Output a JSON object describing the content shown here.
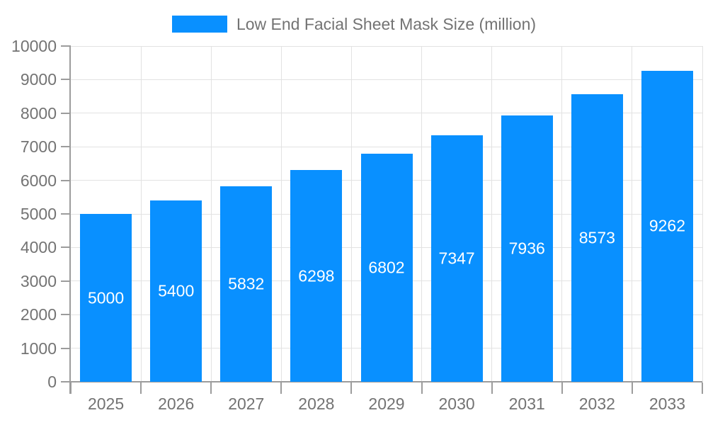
{
  "legend": {
    "label": "Low End Facial Sheet Mask Size (million)",
    "swatch_color": "#0990FF"
  },
  "chart_data": {
    "type": "bar",
    "categories": [
      "2025",
      "2026",
      "2027",
      "2028",
      "2029",
      "2030",
      "2031",
      "2032",
      "2033"
    ],
    "values": [
      5000,
      5400,
      5832,
      6298,
      6802,
      7347,
      7936,
      8573,
      9262
    ],
    "series": [
      {
        "name": "Low End Facial Sheet Mask Size (million)",
        "values": [
          5000,
          5400,
          5832,
          6298,
          6802,
          7347,
          7936,
          8573,
          9262
        ]
      }
    ],
    "title": "",
    "xlabel": "",
    "ylabel": "",
    "ylim": [
      0,
      10000
    ],
    "y_ticks": [
      0,
      1000,
      2000,
      3000,
      4000,
      5000,
      6000,
      7000,
      8000,
      9000,
      10000
    ],
    "grid": true,
    "legend_position": "top",
    "value_labels": "inside-center-white",
    "colors": {
      "bar": "#0990FF",
      "value_label": "#FFFFFF",
      "axis_line": "#9C9C9C",
      "grid_line": "#E2E2E2",
      "tick_label": "#737373"
    }
  }
}
